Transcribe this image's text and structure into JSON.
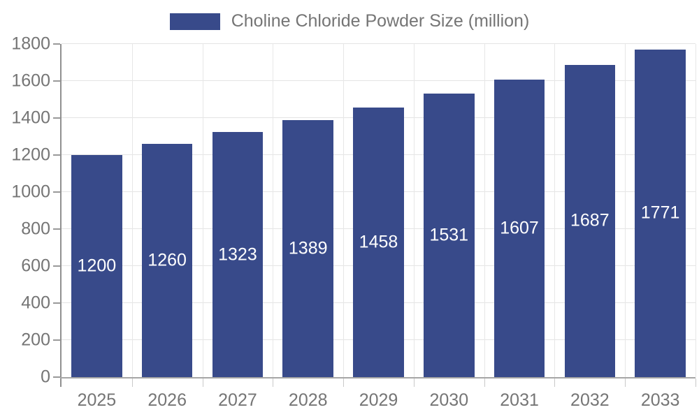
{
  "legend": {
    "label": "Choline Chloride Powder Size (million)"
  },
  "colors": {
    "bar": "#384a8a",
    "bar_label": "#ffffff",
    "axis_text": "#757575",
    "grid": "#e4e4e4",
    "axis_line": "#909090"
  },
  "chart_data": {
    "type": "bar",
    "title": "Choline Chloride Powder Size (million)",
    "categories": [
      "2025",
      "2026",
      "2027",
      "2028",
      "2029",
      "2030",
      "2031",
      "2032",
      "2033"
    ],
    "values": [
      1200,
      1260,
      1323,
      1389,
      1458,
      1531,
      1607,
      1687,
      1771
    ],
    "xlabel": "",
    "ylabel": "",
    "ylim": [
      0,
      1800
    ],
    "yticks": [
      0,
      200,
      400,
      600,
      800,
      1000,
      1200,
      1400,
      1600,
      1800
    ],
    "grid": true,
    "legend_position": "top-center",
    "value_labels": "inside-center"
  }
}
